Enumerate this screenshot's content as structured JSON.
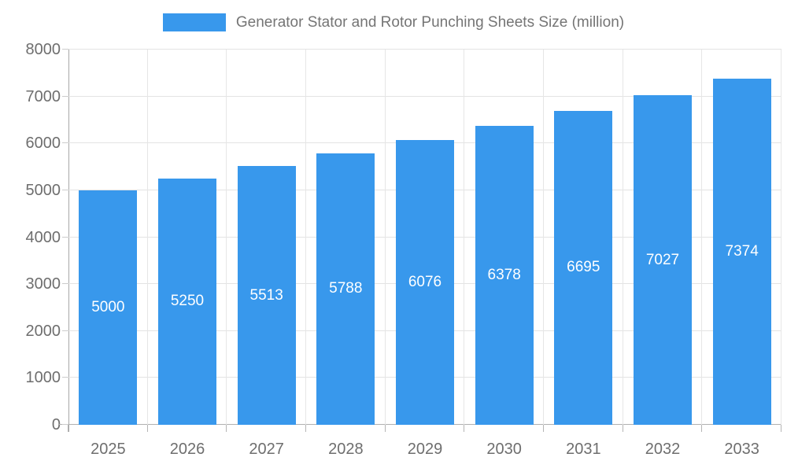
{
  "legend": {
    "label": "Generator Stator and Rotor Punching Sheets Size (million)",
    "swatch_color": "#3898EC"
  },
  "chart_data": {
    "type": "bar",
    "title": "Generator Stator and Rotor Punching Sheets Size (million)",
    "categories": [
      "2025",
      "2026",
      "2027",
      "2028",
      "2029",
      "2030",
      "2031",
      "2032",
      "2033"
    ],
    "values": [
      5000,
      5250,
      5513,
      5788,
      6076,
      6378,
      6695,
      7027,
      7374
    ],
    "xlabel": "",
    "ylabel": "",
    "ylim": [
      0,
      8000
    ],
    "ytick_step": 1000,
    "yticks": [
      0,
      1000,
      2000,
      3000,
      4000,
      5000,
      6000,
      7000,
      8000
    ],
    "bar_color": "#3898EC",
    "value_label_color": "#FFFFFF",
    "axis_label_color": "#6E6E6E",
    "grid": true,
    "legend_position": "top"
  }
}
